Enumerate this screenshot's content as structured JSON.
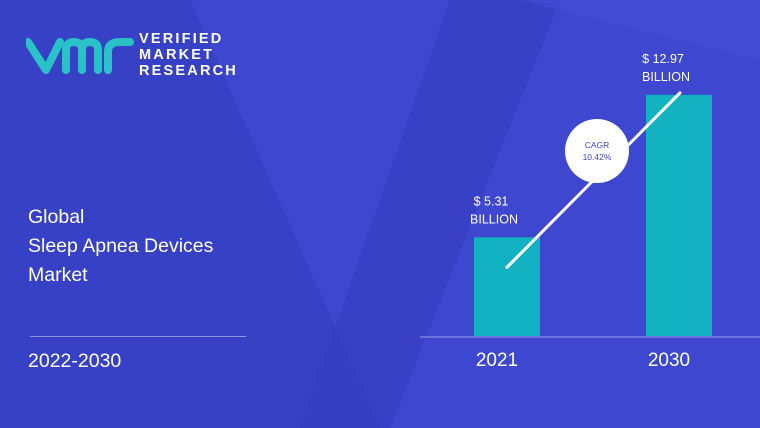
{
  "brand": {
    "logo_icon": "vmr-logo-icon",
    "line1": "VERIFIED",
    "line2": "MARKET",
    "line3": "RESEARCH"
  },
  "title": {
    "line1": "Global",
    "line2": "Sleep Apnea Devices",
    "line3": "Market"
  },
  "period": "2022-2030",
  "colors": {
    "background": "#3d47cf",
    "bar": "#12b2c2",
    "accent_logo": "#29c2c9",
    "text": "#ffffff"
  },
  "chart_data": {
    "type": "bar",
    "categories": [
      "2021",
      "2030"
    ],
    "values": [
      5.31,
      12.97
    ],
    "value_labels": [
      [
        "$ 5.31",
        "BILLION"
      ],
      [
        "$ 12.97",
        "BILLION"
      ]
    ],
    "annotation": {
      "label": "CAGR",
      "value": "10.42%"
    },
    "ylim": [
      0,
      13.5
    ],
    "grid": false
  }
}
